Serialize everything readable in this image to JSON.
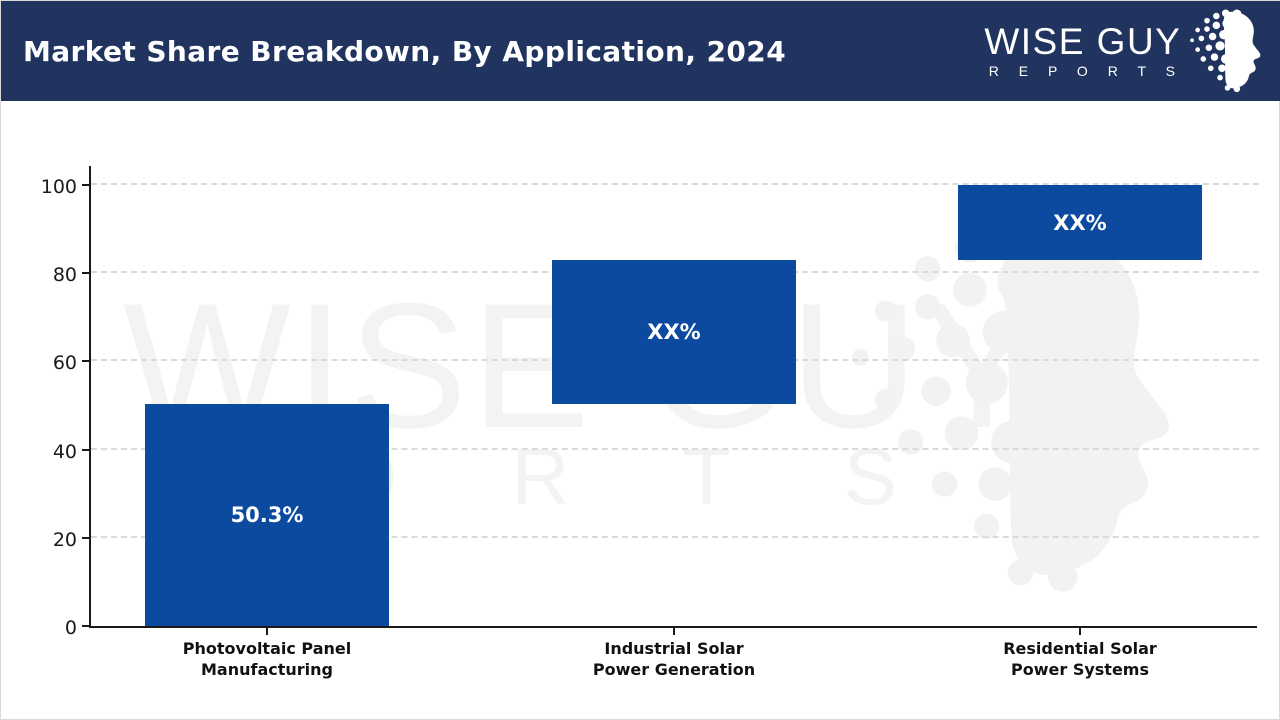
{
  "header": {
    "title": "Market Share Breakdown, By Application, 2024",
    "bg_color": "#20345f",
    "logo": {
      "line1": "WISE GUY",
      "line2": "R E P O R T S"
    }
  },
  "watermark": {
    "line1": "WISE GUY",
    "line2": "P O R T S"
  },
  "chart_data": {
    "type": "bar",
    "subtype": "waterfall",
    "title": "Market Share Breakdown, By Application, 2024",
    "categories": [
      [
        "Photovoltaic Panel",
        "Manufacturing"
      ],
      [
        "Industrial Solar",
        "Power Generation"
      ],
      [
        "Residential Solar",
        "Power Systems"
      ]
    ],
    "segments": [
      {
        "start": 0,
        "end": 50.3,
        "label": "50.3%"
      },
      {
        "start": 50.3,
        "end": 83,
        "label": "XX%"
      },
      {
        "start": 83,
        "end": 100,
        "label": "XX%"
      }
    ],
    "ylim": [
      0,
      100
    ],
    "yticks": [
      0,
      20,
      40,
      60,
      80,
      100
    ],
    "grid": "horizontal-dashed",
    "grid_color": "#dadada",
    "bar_color": "#0b4a9e",
    "bar_label_color": "#ffffff",
    "legend": "none"
  }
}
